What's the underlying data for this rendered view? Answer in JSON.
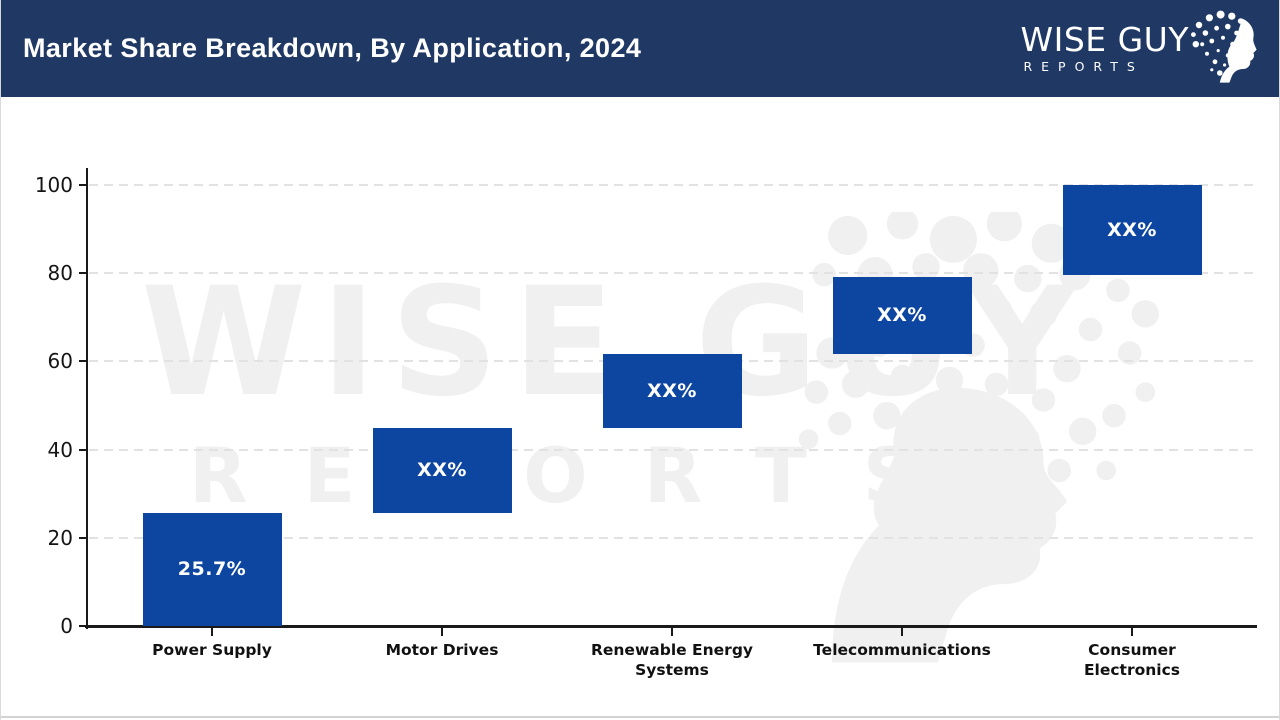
{
  "header": {
    "title": "Market Share Breakdown, By Application, 2024",
    "logo": {
      "brand": "WISE GUY",
      "brand_sub": "REPORTS"
    }
  },
  "watermark": {
    "line1": "WISE GUY",
    "line2": "REPORTS"
  },
  "chart_data": {
    "type": "bar",
    "variant": "waterfall-market-share",
    "title": "Market Share Breakdown, By Application, 2024",
    "xlabel": "",
    "ylabel": "",
    "ylim": [
      0,
      104
    ],
    "yticks": [
      0,
      20,
      40,
      60,
      80,
      100
    ],
    "grid": "horizontal-dashed",
    "legend": "none",
    "bar_color": "#0d46a0",
    "value_label_color": "#ffffff",
    "categories": [
      "Power Supply",
      "Motor Drives",
      "Renewable Energy Systems",
      "Telecommunications",
      "Consumer Electronics"
    ],
    "category_label_lines": [
      [
        "Power Supply"
      ],
      [
        "Motor Drives"
      ],
      [
        "Renewable Energy",
        "Systems"
      ],
      [
        "Telecommunications"
      ],
      [
        "Consumer",
        "Electronics"
      ]
    ],
    "segments": [
      {
        "category": "Power Supply",
        "start": 0,
        "end": 25.7,
        "label": "25.7%"
      },
      {
        "category": "Motor Drives",
        "start": 25.7,
        "end": 45.0,
        "label": "XX%"
      },
      {
        "category": "Renewable Energy Systems",
        "start": 45.0,
        "end": 61.7,
        "label": "XX%"
      },
      {
        "category": "Telecommunications",
        "start": 61.7,
        "end": 79.2,
        "label": "XX%"
      },
      {
        "category": "Consumer Electronics",
        "start": 79.6,
        "end": 100,
        "label": "XX%"
      }
    ]
  },
  "colors": {
    "header_bg": "#1f3864",
    "bar": "#0d46a0",
    "watermark": "#f0f0f0",
    "grid": "#e2e2e2",
    "axis": "#1a1a1a",
    "border": "#d3d3d3"
  }
}
